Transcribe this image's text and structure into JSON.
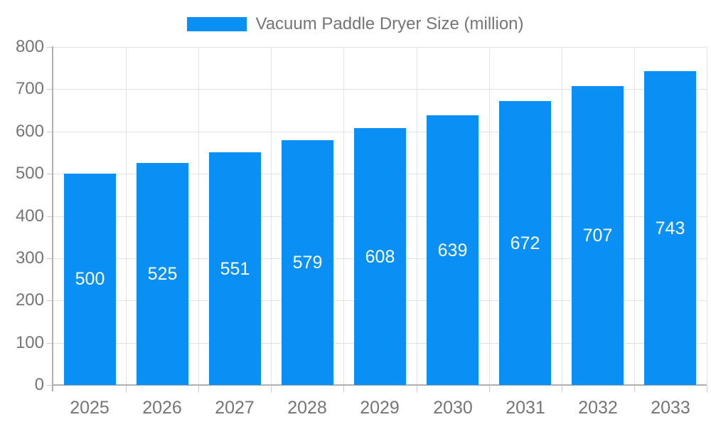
{
  "legend": {
    "label": "Vacuum Paddle Dryer Size (million)"
  },
  "colors": {
    "background": "#ffffff",
    "bar": "#0a90f5",
    "bar_label": "#ffffff",
    "axis": "#b0b0b0",
    "grid": "#e3e3e3",
    "tick": "#c9c9c9",
    "text": "#757575"
  },
  "chart_data": {
    "type": "bar",
    "title": "Vacuum Paddle Dryer Size (million)",
    "categories": [
      "2025",
      "2026",
      "2027",
      "2028",
      "2029",
      "2030",
      "2031",
      "2032",
      "2033"
    ],
    "series": [
      {
        "name": "Vacuum Paddle Dryer Size (million)",
        "values": [
          500,
          525,
          551,
          579,
          608,
          639,
          672,
          707,
          743
        ]
      }
    ],
    "xlabel": "",
    "ylabel": "",
    "ylim": [
      0,
      800
    ],
    "ytick_step": 100,
    "grid": true,
    "legend_position": "top",
    "bar_labels": "inside-center"
  }
}
